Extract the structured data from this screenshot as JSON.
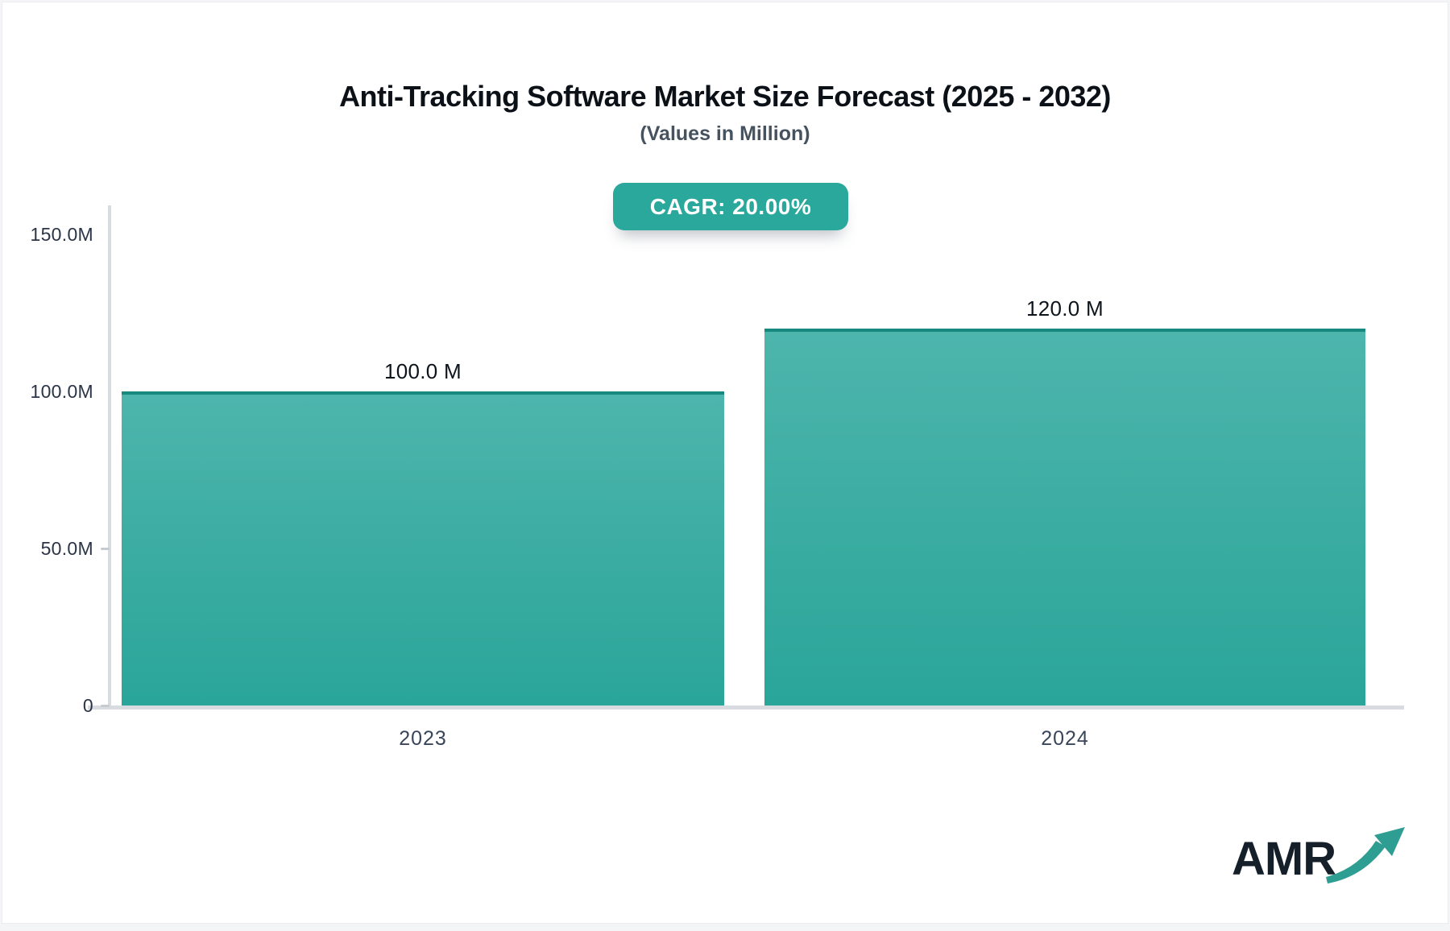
{
  "page": {
    "background": "#f4f5f7",
    "card_background": "#ffffff"
  },
  "chart_data": {
    "type": "bar",
    "title": "Anti-Tracking Software Market Size Forecast (2025 - 2032)",
    "subtitle": "(Values in Million)",
    "badge_label": "CAGR: 20.00%",
    "categories": [
      "2023",
      "2024"
    ],
    "values": [
      100.0,
      120.0
    ],
    "value_labels": [
      "100.0 M",
      "120.0 M"
    ],
    "unit": "Million",
    "ylim": [
      0,
      150
    ],
    "yticks": [
      {
        "label": "150.0M",
        "value": 150,
        "dash": false
      },
      {
        "label": "100.0M",
        "value": 100,
        "dash": false
      },
      {
        "label": "50.0M",
        "value": 50,
        "dash": true
      },
      {
        "label": "0",
        "value": 0,
        "dash": true
      }
    ],
    "grid": false,
    "legend": false,
    "colors": {
      "bar_gradient_top": "#4db5ac",
      "bar_gradient_bottom": "#2aa59a",
      "bar_top_border": "#17897e",
      "badge_background": "#2aa89c",
      "badge_text": "#ffffff",
      "axis_line": "#d8dbe0",
      "tick_text": "#2b3547",
      "title_text": "#0c1117",
      "subtitle_text": "#47525f"
    }
  },
  "branding": {
    "logo_text": "AMR",
    "arrow_color": "#2f9e92"
  }
}
